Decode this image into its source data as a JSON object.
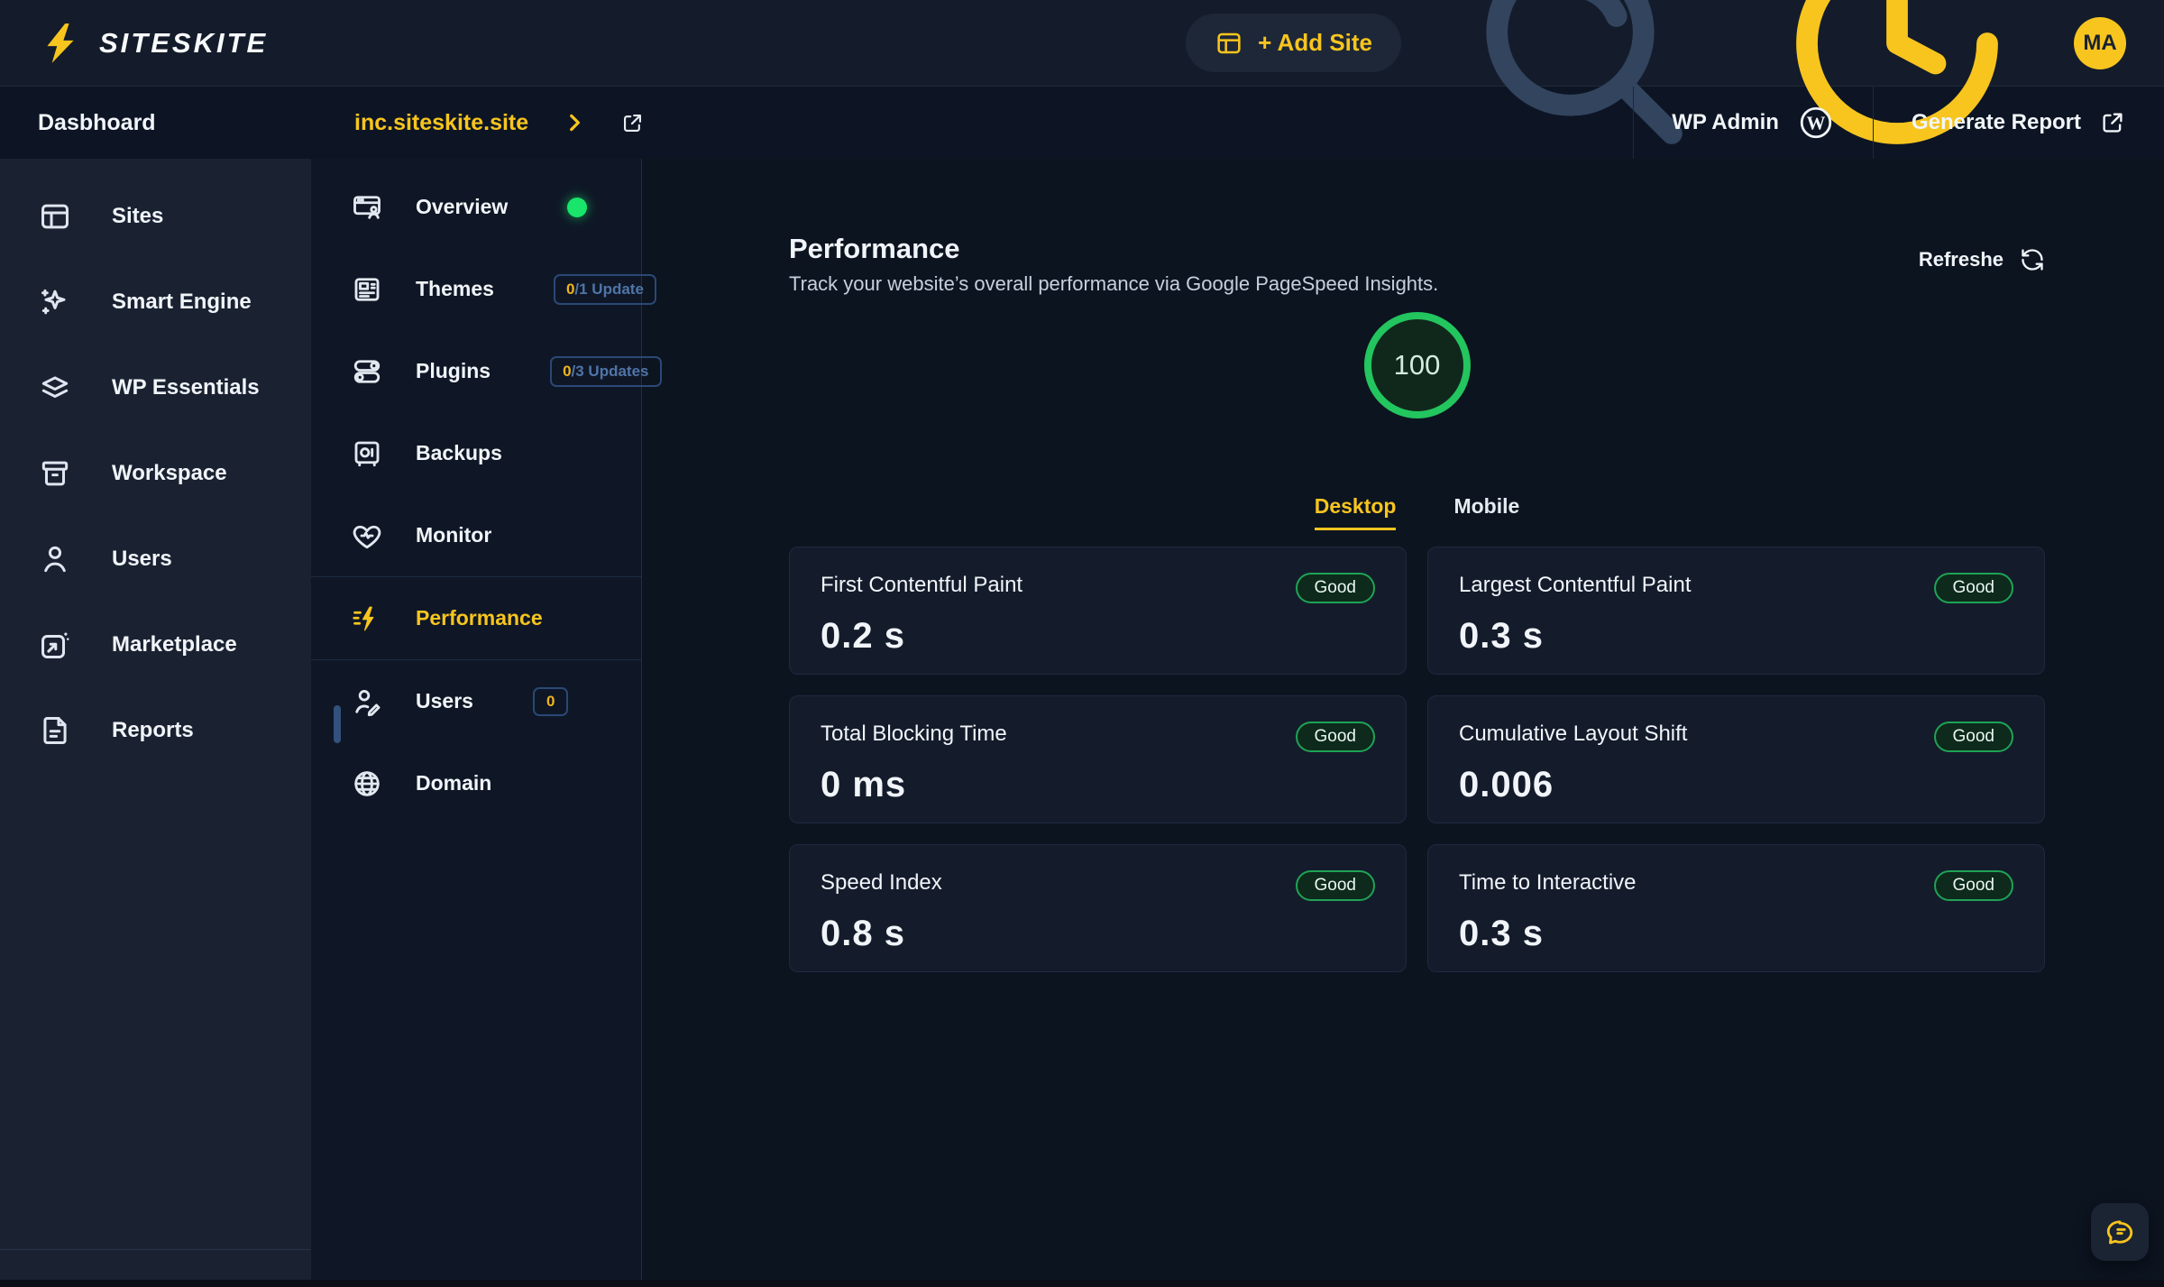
{
  "header": {
    "brand": "SITESKITE",
    "add_site_label": "+ Add Site",
    "avatar_initials": "MA",
    "icons": [
      "bolt-logo-icon",
      "layout-grid-icon",
      "search-icon",
      "clock-history-icon"
    ]
  },
  "breadcrumb_bar": {
    "dashboard_label": "Dasbhoard",
    "site_domain": "inc.siteskite.site",
    "wp_admin_label": "WP Admin",
    "generate_report_label": "Generate Report"
  },
  "sidebar": {
    "items": [
      {
        "label": "Sites",
        "icon": "layout-grid-icon"
      },
      {
        "label": "Smart Engine",
        "icon": "sparkles-icon"
      },
      {
        "label": "WP Essentials",
        "icon": "layers-icon"
      },
      {
        "label": "Workspace",
        "icon": "archive-box-icon"
      },
      {
        "label": "Users",
        "icon": "user-icon"
      },
      {
        "label": "Marketplace",
        "icon": "marketplace-icon"
      },
      {
        "label": "Reports",
        "icon": "report-file-icon"
      }
    ]
  },
  "site_menu": {
    "groups": [
      {
        "items": [
          {
            "label": "Overview",
            "icon": "overview-window-icon",
            "status_dot": true
          },
          {
            "label": "Themes",
            "icon": "themes-icon",
            "badge_count": "0",
            "badge_rest": "/1 Update"
          },
          {
            "label": "Plugins",
            "icon": "plugins-toggles-icon",
            "badge_count": "0",
            "badge_rest": "/3 Updates"
          },
          {
            "label": "Backups",
            "icon": "backups-safe-icon"
          },
          {
            "label": "Monitor",
            "icon": "monitor-heart-icon"
          }
        ]
      },
      {
        "items": [
          {
            "label": "Performance",
            "icon": "performance-bolt-icon",
            "active": true
          }
        ]
      },
      {
        "items": [
          {
            "label": "Users",
            "icon": "user-edit-icon",
            "badge_count": "0"
          },
          {
            "label": "Domain",
            "icon": "globe-icon"
          }
        ]
      }
    ]
  },
  "main": {
    "title": "Performance",
    "subtitle": "Track your website’s overall performance via Google PageSpeed Insights.",
    "refresh_label": "Refreshe",
    "score": "100",
    "tabs": [
      {
        "label": "Desktop",
        "active": true
      },
      {
        "label": "Mobile",
        "active": false
      }
    ],
    "metrics": [
      {
        "name": "First Contentful Paint",
        "value": "0.2 s",
        "status": "Good"
      },
      {
        "name": "Largest Contentful Paint",
        "value": "0.3 s",
        "status": "Good"
      },
      {
        "name": "Total Blocking Time",
        "value": "0 ms",
        "status": "Good"
      },
      {
        "name": "Cumulative Layout Shift",
        "value": "0.006",
        "status": "Good"
      },
      {
        "name": "Speed Index",
        "value": "0.8 s",
        "status": "Good"
      },
      {
        "name": "Time to Interactive",
        "value": "0.3 s",
        "status": "Good"
      }
    ]
  },
  "colors": {
    "accent_yellow": "#f7c51e",
    "score_green": "#23c55e",
    "status_dot_green": "#19e56b",
    "badge_blue_border": "#2b4875",
    "badge_blue_text": "#4f74a8",
    "header_bg": "#141c2b",
    "sidebar_bg": "#1a2232",
    "site_menu_bg": "#0f1726",
    "main_bg": "#0c1420",
    "card_bg": "#141c2c"
  }
}
